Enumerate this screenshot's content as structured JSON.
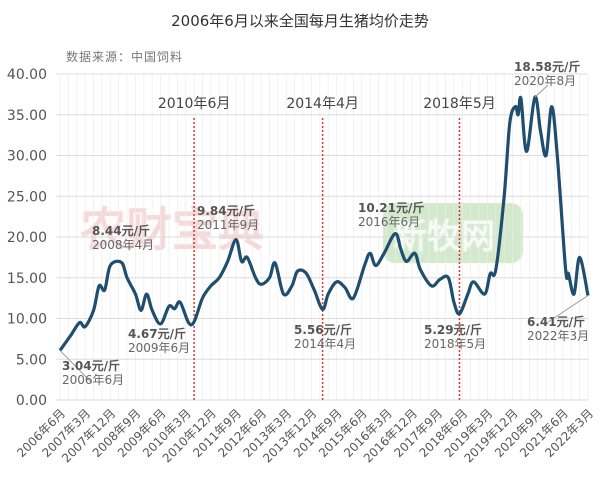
{
  "chart_data": {
    "type": "line",
    "title": "2006年6月以来全国每月生猪均价走势",
    "source": "数据来源：中国饲料",
    "ylim": [
      0,
      40
    ],
    "yticks": [
      "0.00",
      "5.00",
      "10.00",
      "15.00",
      "20.00",
      "25.00",
      "30.00",
      "35.00",
      "40.00"
    ],
    "xticks": [
      "2006年6月",
      "2007年3月",
      "2007年12月",
      "2008年9月",
      "2009年6月",
      "2010年3月",
      "2010年12月",
      "2011年9月",
      "2012年6月",
      "2013年3月",
      "2013年12月",
      "2014年9月",
      "2015年6月",
      "2016年3月",
      "2016年12月",
      "2017年9月",
      "2018年6月",
      "2019年3月",
      "2019年12月",
      "2020年9月",
      "2021年6月",
      "2022年3月"
    ],
    "grid": true,
    "series": [
      {
        "name": "生猪均价",
        "color": "#1f4e6e",
        "points": [
          [
            "2006-06",
            6.08
          ],
          [
            "2006-10",
            8
          ],
          [
            "2007-01",
            9.5
          ],
          [
            "2007-03",
            9
          ],
          [
            "2007-06",
            11
          ],
          [
            "2007-08",
            14
          ],
          [
            "2007-10",
            13.5
          ],
          [
            "2007-12",
            16.5
          ],
          [
            "2008-04",
            16.88
          ],
          [
            "2008-06",
            15
          ],
          [
            "2008-09",
            13
          ],
          [
            "2008-11",
            11
          ],
          [
            "2009-01",
            13
          ],
          [
            "2009-03",
            11
          ],
          [
            "2009-06",
            9.34
          ],
          [
            "2009-09",
            11.5
          ],
          [
            "2009-11",
            11.2
          ],
          [
            "2010-01",
            12
          ],
          [
            "2010-04",
            9.5
          ],
          [
            "2010-06",
            9.6
          ],
          [
            "2010-09",
            12.5
          ],
          [
            "2010-12",
            14
          ],
          [
            "2011-03",
            15
          ],
          [
            "2011-06",
            17
          ],
          [
            "2011-09",
            19.68
          ],
          [
            "2011-11",
            17
          ],
          [
            "2012-01",
            17.5
          ],
          [
            "2012-04",
            15
          ],
          [
            "2012-06",
            14.2
          ],
          [
            "2012-09",
            15
          ],
          [
            "2012-11",
            16.8
          ],
          [
            "2013-02",
            13
          ],
          [
            "2013-05",
            14
          ],
          [
            "2013-07",
            15.8
          ],
          [
            "2013-10",
            15.6
          ],
          [
            "2014-01",
            13.5
          ],
          [
            "2014-04",
            11.12
          ],
          [
            "2014-06",
            13
          ],
          [
            "2014-09",
            14.5
          ],
          [
            "2014-12",
            13.8
          ],
          [
            "2015-03",
            12.5
          ],
          [
            "2015-07",
            16.5
          ],
          [
            "2015-09",
            18
          ],
          [
            "2015-11",
            16.5
          ],
          [
            "2016-02",
            18
          ],
          [
            "2016-06",
            20.42
          ],
          [
            "2016-08",
            18.5
          ],
          [
            "2016-10",
            17
          ],
          [
            "2017-01",
            18
          ],
          [
            "2017-03",
            16
          ],
          [
            "2017-07",
            14
          ],
          [
            "2017-10",
            14.8
          ],
          [
            "2018-01",
            15
          ],
          [
            "2018-03",
            12
          ],
          [
            "2018-05",
            10.58
          ],
          [
            "2018-08",
            13
          ],
          [
            "2018-10",
            14.5
          ],
          [
            "2019-02",
            13
          ],
          [
            "2019-04",
            15.5
          ],
          [
            "2019-06",
            16
          ],
          [
            "2019-09",
            25
          ],
          [
            "2019-11",
            34
          ],
          [
            "2020-01",
            36
          ],
          [
            "2020-02",
            35
          ],
          [
            "2020-03",
            37
          ],
          [
            "2020-05",
            30.5
          ],
          [
            "2020-08",
            37.16
          ],
          [
            "2020-10",
            33
          ],
          [
            "2020-12",
            30
          ],
          [
            "2021-02",
            36
          ],
          [
            "2021-04",
            30
          ],
          [
            "2021-07",
            16
          ],
          [
            "2021-08",
            15.5
          ],
          [
            "2021-10",
            13
          ],
          [
            "2021-12",
            17.5
          ],
          [
            "2022-03",
            12.82
          ]
        ]
      }
    ],
    "markers": [
      {
        "label": "2010年6月",
        "date": "2010-06"
      },
      {
        "label": "2014年4月",
        "date": "2014-04"
      },
      {
        "label": "2018年5月",
        "date": "2018-05"
      }
    ],
    "annotations": [
      {
        "value": "3.04元/斤",
        "date_label": "2006年6月",
        "date": "2006-06"
      },
      {
        "value": "8.44元/斤",
        "date_label": "2008年4月",
        "date": "2008-04"
      },
      {
        "value": "4.67元/斤",
        "date_label": "2009年6月",
        "date": "2009-06"
      },
      {
        "value": "9.84元/斤",
        "date_label": "2011年9月",
        "date": "2011-09"
      },
      {
        "value": "5.56元/斤",
        "date_label": "2014年4月",
        "date": "2014-04"
      },
      {
        "value": "10.21元/斤",
        "date_label": "2016年6月",
        "date": "2016-06"
      },
      {
        "value": "5.29元/斤",
        "date_label": "2018年5月",
        "date": "2018-05"
      },
      {
        "value": "18.58元/斤",
        "date_label": "2020年8月",
        "date": "2020-08"
      },
      {
        "value": "6.41元/斤",
        "date_label": "2022年3月",
        "date": "2022-03"
      }
    ],
    "watermarks": [
      "农财宝典",
      "新牧网"
    ]
  }
}
